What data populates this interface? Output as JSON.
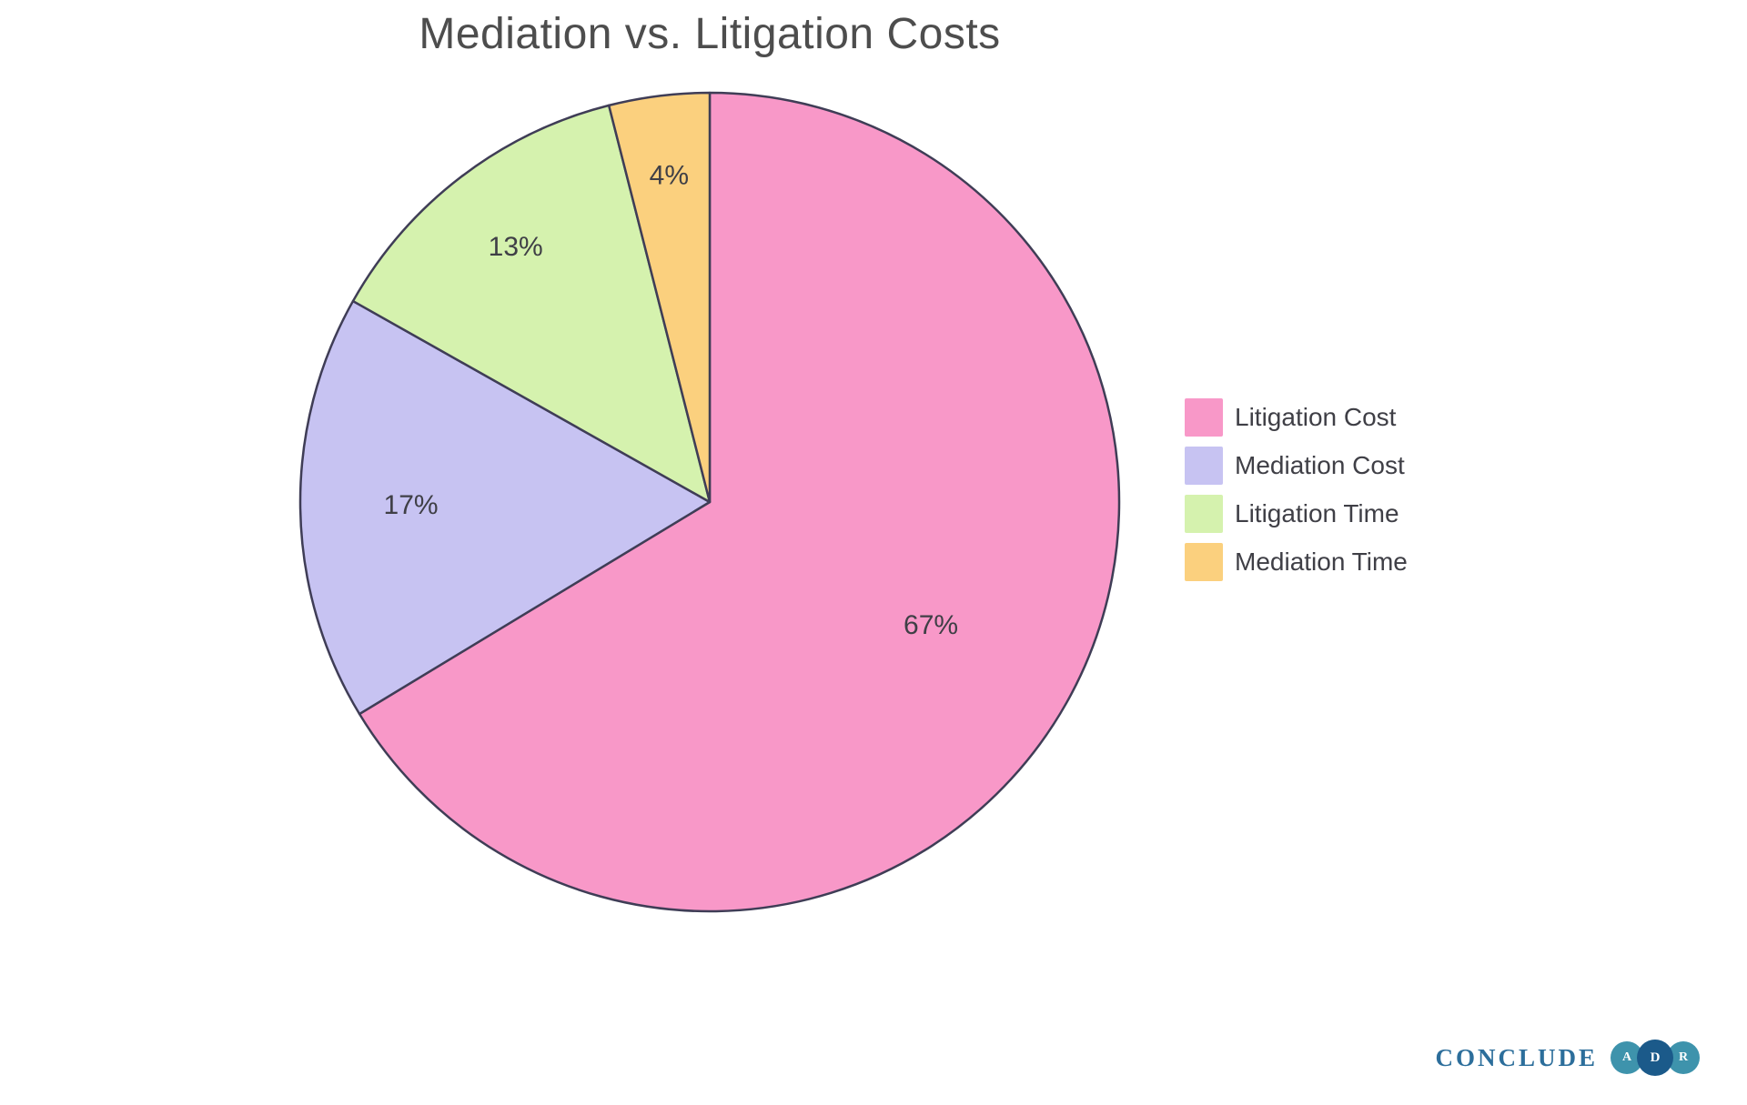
{
  "chart": {
    "title": "Mediation vs. Litigation Costs"
  },
  "chart_data": {
    "type": "pie",
    "title": "Mediation vs. Litigation Costs",
    "labels": [
      "Litigation Cost",
      "Mediation Cost",
      "Litigation Time",
      "Mediation Time"
    ],
    "values": [
      67,
      17,
      13,
      4
    ],
    "slice_labels": [
      "67%",
      "17%",
      "13%",
      "4%"
    ],
    "colors": [
      "#F898C8",
      "#C7C3F2",
      "#D5F2AE",
      "#FBD07E"
    ],
    "outline_color": "#3F3D56",
    "label_color": "#3F3F46",
    "start_angle_deg": 0,
    "direction": "clockwise",
    "legend_position": "right",
    "legend_entries": [
      "Litigation Cost",
      "Mediation Cost",
      "Litigation Time",
      "Mediation Time"
    ]
  },
  "logo": {
    "text": "CONCLUDE",
    "badges": [
      "A",
      "D",
      "R"
    ],
    "badge_colors": [
      "#3E93AC",
      "#1B5A8A",
      "#3E93AC"
    ],
    "text_color": "#2C6E9B"
  }
}
